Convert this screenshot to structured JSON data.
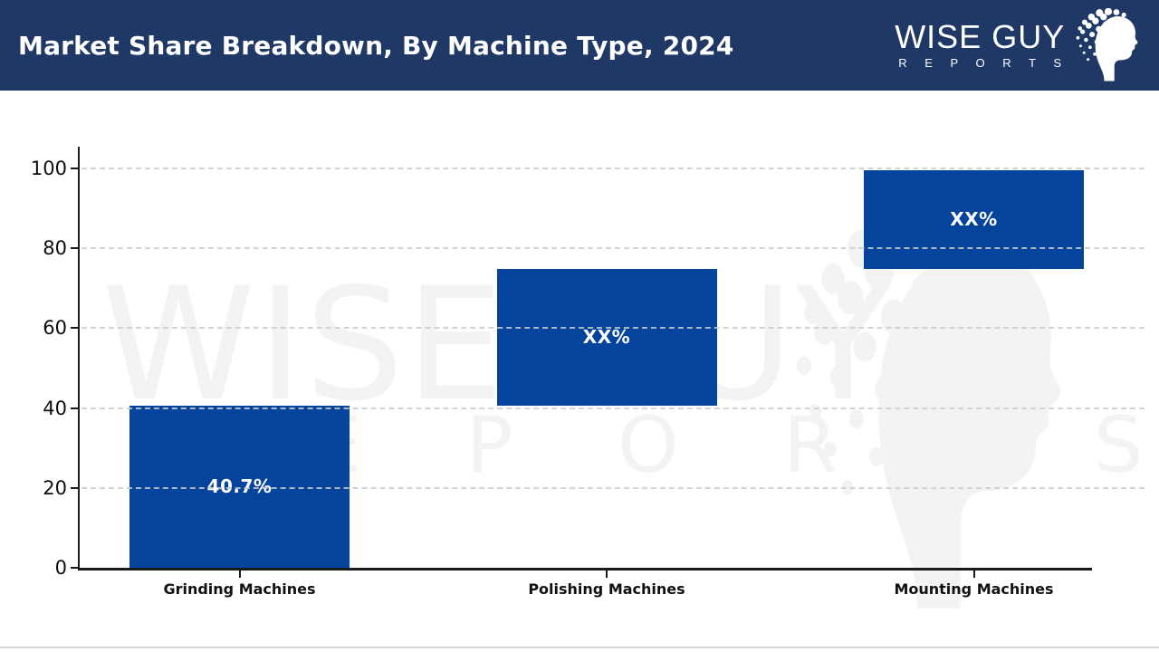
{
  "header": {
    "title": "Market Share Breakdown, By Machine Type, 2024",
    "bg_color": "#1f3866",
    "brand": {
      "line1": "WISE GUY",
      "line2": "R E P O R T S"
    }
  },
  "watermark": {
    "line1": "WISE GUY",
    "line2": "R E P O R T S"
  },
  "chart_data": {
    "type": "bar",
    "subtype": "floating-stacked-segments",
    "title": "Market Share Breakdown, By Machine Type, 2024",
    "categories": [
      "Grinding Machines",
      "Polishing Machines",
      "Mounting Machines"
    ],
    "series": [
      {
        "name": "Market Share",
        "segments": [
          {
            "category": "Grinding Machines",
            "start": 0,
            "end": 40.7,
            "label": "40.7%"
          },
          {
            "category": "Polishing Machines",
            "start": 40.7,
            "end": 74.8,
            "label": "XX%"
          },
          {
            "category": "Mounting Machines",
            "start": 74.8,
            "end": 99.6,
            "label": "XX%"
          }
        ]
      }
    ],
    "ylim": [
      0,
      100
    ],
    "yticks": [
      0,
      20,
      40,
      60,
      80,
      100
    ],
    "xlabel": "",
    "ylabel": "",
    "grid": "horizontal-dashed",
    "legend": "none",
    "bar_color": "#05449c",
    "bar_label_color": "#ffffff",
    "gridline_color": "#cbcbcb",
    "axis_color": "#1a1a1a"
  }
}
